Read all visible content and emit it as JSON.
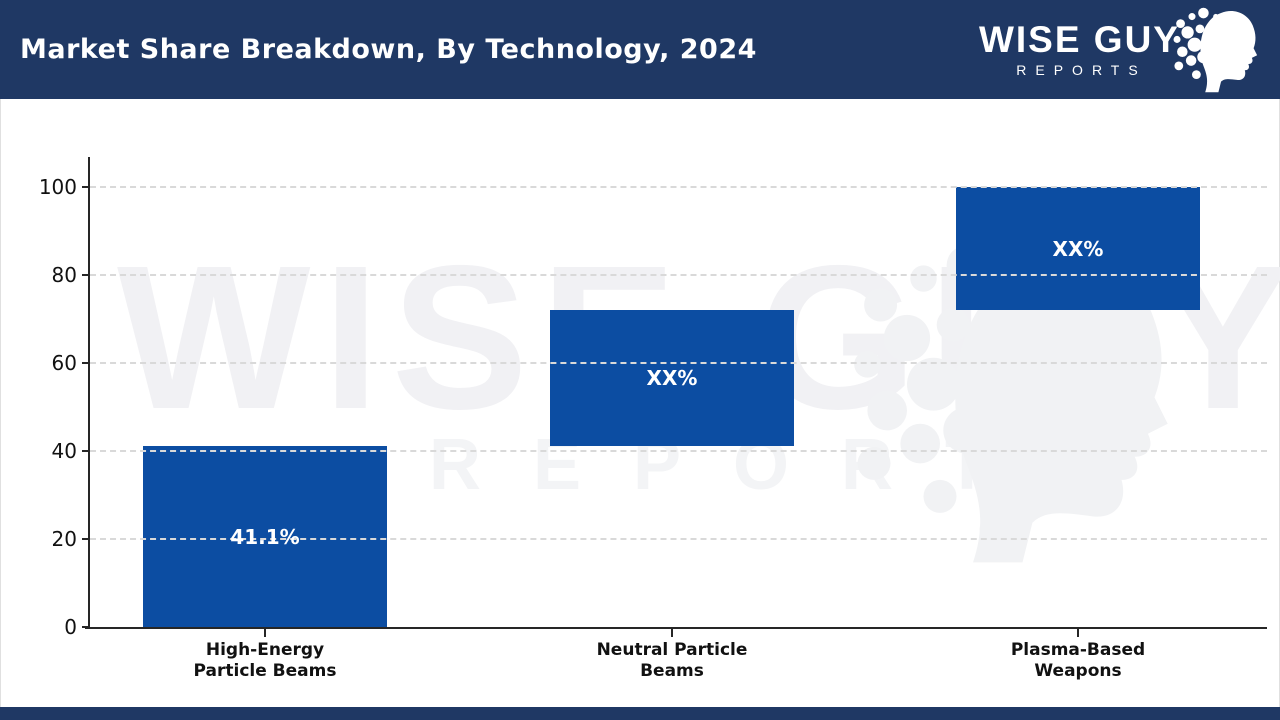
{
  "header": {
    "title": "Market Share Breakdown, By Technology, 2024",
    "logo": {
      "line1": "WISE GUY",
      "line2": "REPORTS",
      "face_icon": "dotted-face-profile"
    }
  },
  "watermark": {
    "line1": "WISE GU Y",
    "line2": "REPORTS",
    "face_icon": "dotted-face-profile"
  },
  "colors": {
    "header_bg": "#1f3864",
    "footer_bg": "#1f3864",
    "bar": "#0c4da2",
    "bar_label": "#ffffff",
    "gridline": "#d9d9d9",
    "axis": "#262626",
    "watermark": "#f1f1f4"
  },
  "chart_data": {
    "type": "bar",
    "variant": "floating-segments",
    "title": "Market Share Breakdown, By Technology, 2024",
    "xlabel": "",
    "ylabel": "",
    "ylim": [
      0,
      100
    ],
    "yticks": [
      0,
      20,
      40,
      60,
      80,
      100
    ],
    "grid": "horizontal-dashed",
    "legend": "none",
    "categories": [
      "High-Energy\nParticle Beams",
      "Neutral Particle\nBeams",
      "Plasma-Based\nWeapons"
    ],
    "segments": [
      {
        "category": "High-Energy Particle Beams",
        "start": 0,
        "end": 41.1,
        "label": "41.1%"
      },
      {
        "category": "Neutral Particle Beams",
        "start": 41.1,
        "end": 72,
        "label": "XX%"
      },
      {
        "category": "Plasma-Based Weapons",
        "start": 72,
        "end": 100,
        "label": "XX%"
      }
    ]
  }
}
